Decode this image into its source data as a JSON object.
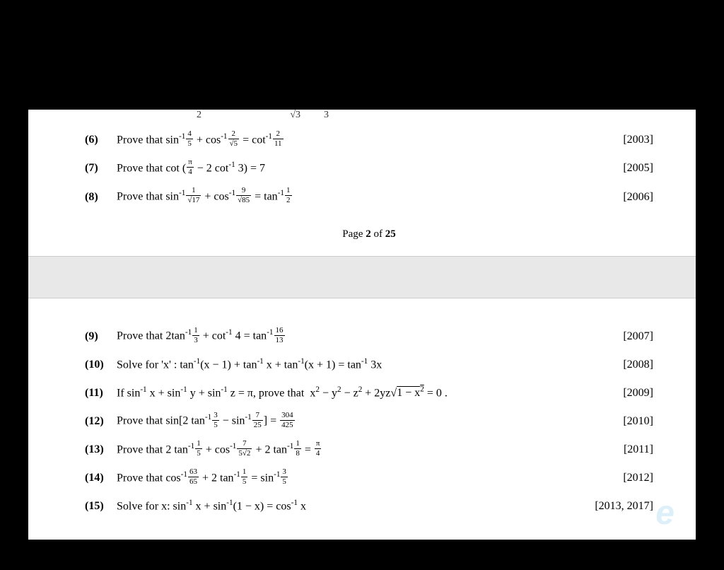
{
  "page_footer": {
    "prefix": "Page",
    "current": "2",
    "of": "of",
    "total": "25"
  },
  "truncated": {
    "left_frag_1": "2",
    "left_frag_2": "√3",
    "left_frag_3": "3"
  },
  "problems_top": [
    {
      "num": "(6)",
      "prefix": "Prove that ",
      "math": "sin<sup>-1</sup><span class='frac'><span class='num'>4</span><span class='den'>5</span></span> + cos<sup>-1</sup><span class='frac'><span class='num'>2</span><span class='den'>√5</span></span> = cot<sup>-1</sup><span class='frac'><span class='num'>2</span><span class='den'>11</span></span>",
      "year": "[2003]"
    },
    {
      "num": "(7)",
      "prefix": "Prove that ",
      "math": "cot (<span class='frac'><span class='num'>π</span><span class='den'>4</span></span> − 2 cot<sup>-1</sup> 3) = 7",
      "year": "[2005]"
    },
    {
      "num": "(8)",
      "prefix": "Prove that ",
      "math": "sin<sup>-1</sup><span class='frac'><span class='num'>1</span><span class='den'>√17</span></span> + cos<sup>-1</sup><span class='frac'><span class='num'>9</span><span class='den'>√85</span></span> = tan<sup>-1</sup><span class='frac'><span class='num'>1</span><span class='den'>2</span></span>",
      "year": "[2006]"
    }
  ],
  "problems_bottom": [
    {
      "num": "(9)",
      "prefix": "Prove that ",
      "math": "2tan<sup>-1</sup><span class='frac'><span class='num'>1</span><span class='den'>3</span></span> + cot<sup>-1</sup> 4 = tan<sup>-1</sup><span class='frac'><span class='num'>16</span><span class='den'>13</span></span>",
      "year": "[2007]"
    },
    {
      "num": "(10)",
      "prefix": "Solve for 'x' : ",
      "math": "tan<sup>-1</sup>(x − 1) + tan<sup>-1</sup> x + tan<sup>-1</sup>(x + 1) = tan<sup>-1</sup> 3x",
      "year": "[2008]"
    },
    {
      "num": "(11)",
      "prefix": "If ",
      "math": "sin<sup>-1</sup> x + sin<sup>-1</sup> y + sin<sup>-1</sup> z = π, prove that&nbsp; x<sup>2</sup> − y<sup>2</sup> − z<sup>2</sup> + 2yz√<span style='text-decoration:overline'>1 − x<sup>2</sup></span> = 0 .",
      "year": "[2009]"
    },
    {
      "num": "(12)",
      "prefix": "Prove that ",
      "math": "sin[2 tan<sup>-1</sup><span class='frac'><span class='num'>3</span><span class='den'>5</span></span> − sin<sup>-1</sup><span class='frac'><span class='num'>7</span><span class='den'>25</span></span>] = <span class='frac'><span class='num'>304</span><span class='den'>425</span></span>",
      "year": "[2010]"
    },
    {
      "num": "(13)",
      "prefix": "Prove that ",
      "math": "2 tan<sup>-1</sup><span class='frac'><span class='num'>1</span><span class='den'>5</span></span> + cos<sup>-1</sup><span class='frac'><span class='num'>7</span><span class='den'>5√2</span></span> + 2 tan<sup>-1</sup><span class='frac'><span class='num'>1</span><span class='den'>8</span></span> = <span class='frac'><span class='num'>π</span><span class='den'>4</span></span>",
      "year": "[2011]"
    },
    {
      "num": "(14)",
      "prefix": "Prove that ",
      "math": "cos<sup>-1</sup><span class='frac'><span class='num'>63</span><span class='den'>65</span></span> + 2 tan<sup>-1</sup><span class='frac'><span class='num'>1</span><span class='den'>5</span></span> = sin<sup>-1</sup><span class='frac'><span class='num'>3</span><span class='den'>5</span></span>",
      "year": "[2012]"
    },
    {
      "num": "(15)",
      "prefix": "Solve for x: ",
      "math": "sin<sup>-1</sup> x + sin<sup>-1</sup>(1 − x) = cos<sup>-1</sup> x",
      "year": "[2013, 2017]"
    }
  ],
  "colors": {
    "page_bg": "#ffffff",
    "gap_bg": "#e8e8e8",
    "outer_bg": "#000000",
    "text": "#000000",
    "watermark": "#d5ecf7"
  }
}
